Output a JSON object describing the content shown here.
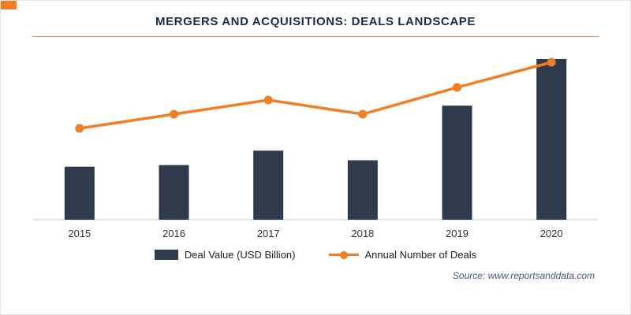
{
  "page": {
    "title": "MERGERS AND ACQUISITIONS: DEALS LANDSCAPE",
    "source": "Source: www.reportsanddata.com"
  },
  "legend": {
    "bar_label": "Deal Value (USD Billion)",
    "line_label": "Annual Number of Deals"
  },
  "colors": {
    "bar": "#2e3b4d",
    "line": "#f07e26",
    "axis": "#cccccc",
    "tick_text": "#333333",
    "title": "#1b2b4a",
    "accent": "#f07e26"
  },
  "chart_data": {
    "type": "bar",
    "subtype": "bar+line combo",
    "title": "MERGERS AND ACQUISITIONS: DEALS LANDSCAPE",
    "categories": [
      "2015",
      "2016",
      "2017",
      "2018",
      "2019",
      "2020"
    ],
    "series": [
      {
        "name": "Deal Value (USD Billion)",
        "type": "bar",
        "values": [
          33,
          34,
          43,
          37,
          71,
          100
        ]
      },
      {
        "name": "Annual Number of Deals",
        "type": "line",
        "values": [
          58,
          67,
          76,
          67,
          84,
          100
        ]
      }
    ],
    "xlabel": "",
    "ylabel": "",
    "ylim": [
      0,
      100
    ],
    "grid": false,
    "y_axis_shown": false,
    "legend_position": "bottom"
  }
}
